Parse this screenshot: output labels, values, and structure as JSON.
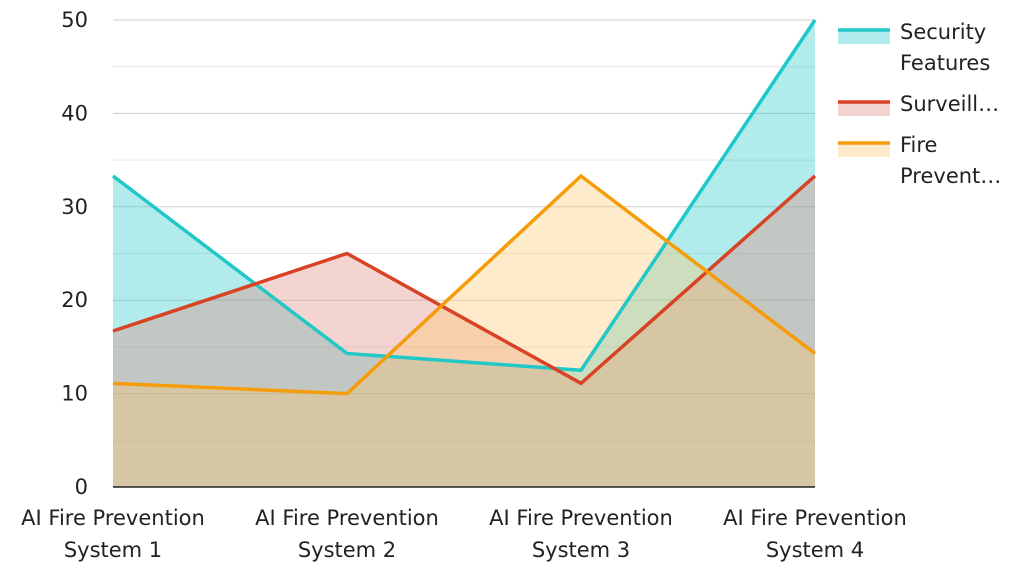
{
  "chart_data": {
    "type": "area",
    "title": "",
    "xlabel": "",
    "ylabel": "",
    "categories": [
      [
        "AI Fire Prevention",
        "System 1"
      ],
      [
        "AI Fire Prevention",
        "System 2"
      ],
      [
        "AI Fire Prevention",
        "System 3"
      ],
      [
        "AI Fire Prevention",
        "System 4"
      ]
    ],
    "ylim": [
      0,
      50
    ],
    "yticks": [
      "0",
      "10",
      "20",
      "30",
      "40",
      "50"
    ],
    "grid": true,
    "legend_position": "right",
    "series": [
      {
        "name": "Security Features",
        "legend_lines": [
          "Security",
          "Features"
        ],
        "color": "#22c7c7",
        "fill": "#22c7c7",
        "values": [
          33.3,
          14.3,
          12.5,
          50
        ]
      },
      {
        "name": "Surveill…",
        "legend_lines": [
          "Surveill…"
        ],
        "color": "#d84325",
        "fill": "#e0847a",
        "values": [
          16.7,
          25,
          11.1,
          33.3
        ]
      },
      {
        "name": "Fire Prevent…",
        "legend_lines": [
          "Fire",
          "Prevent…"
        ],
        "color": "#f59c0b",
        "fill": "#fcc66a",
        "values": [
          11.1,
          10,
          33.3,
          14.3
        ]
      }
    ]
  }
}
